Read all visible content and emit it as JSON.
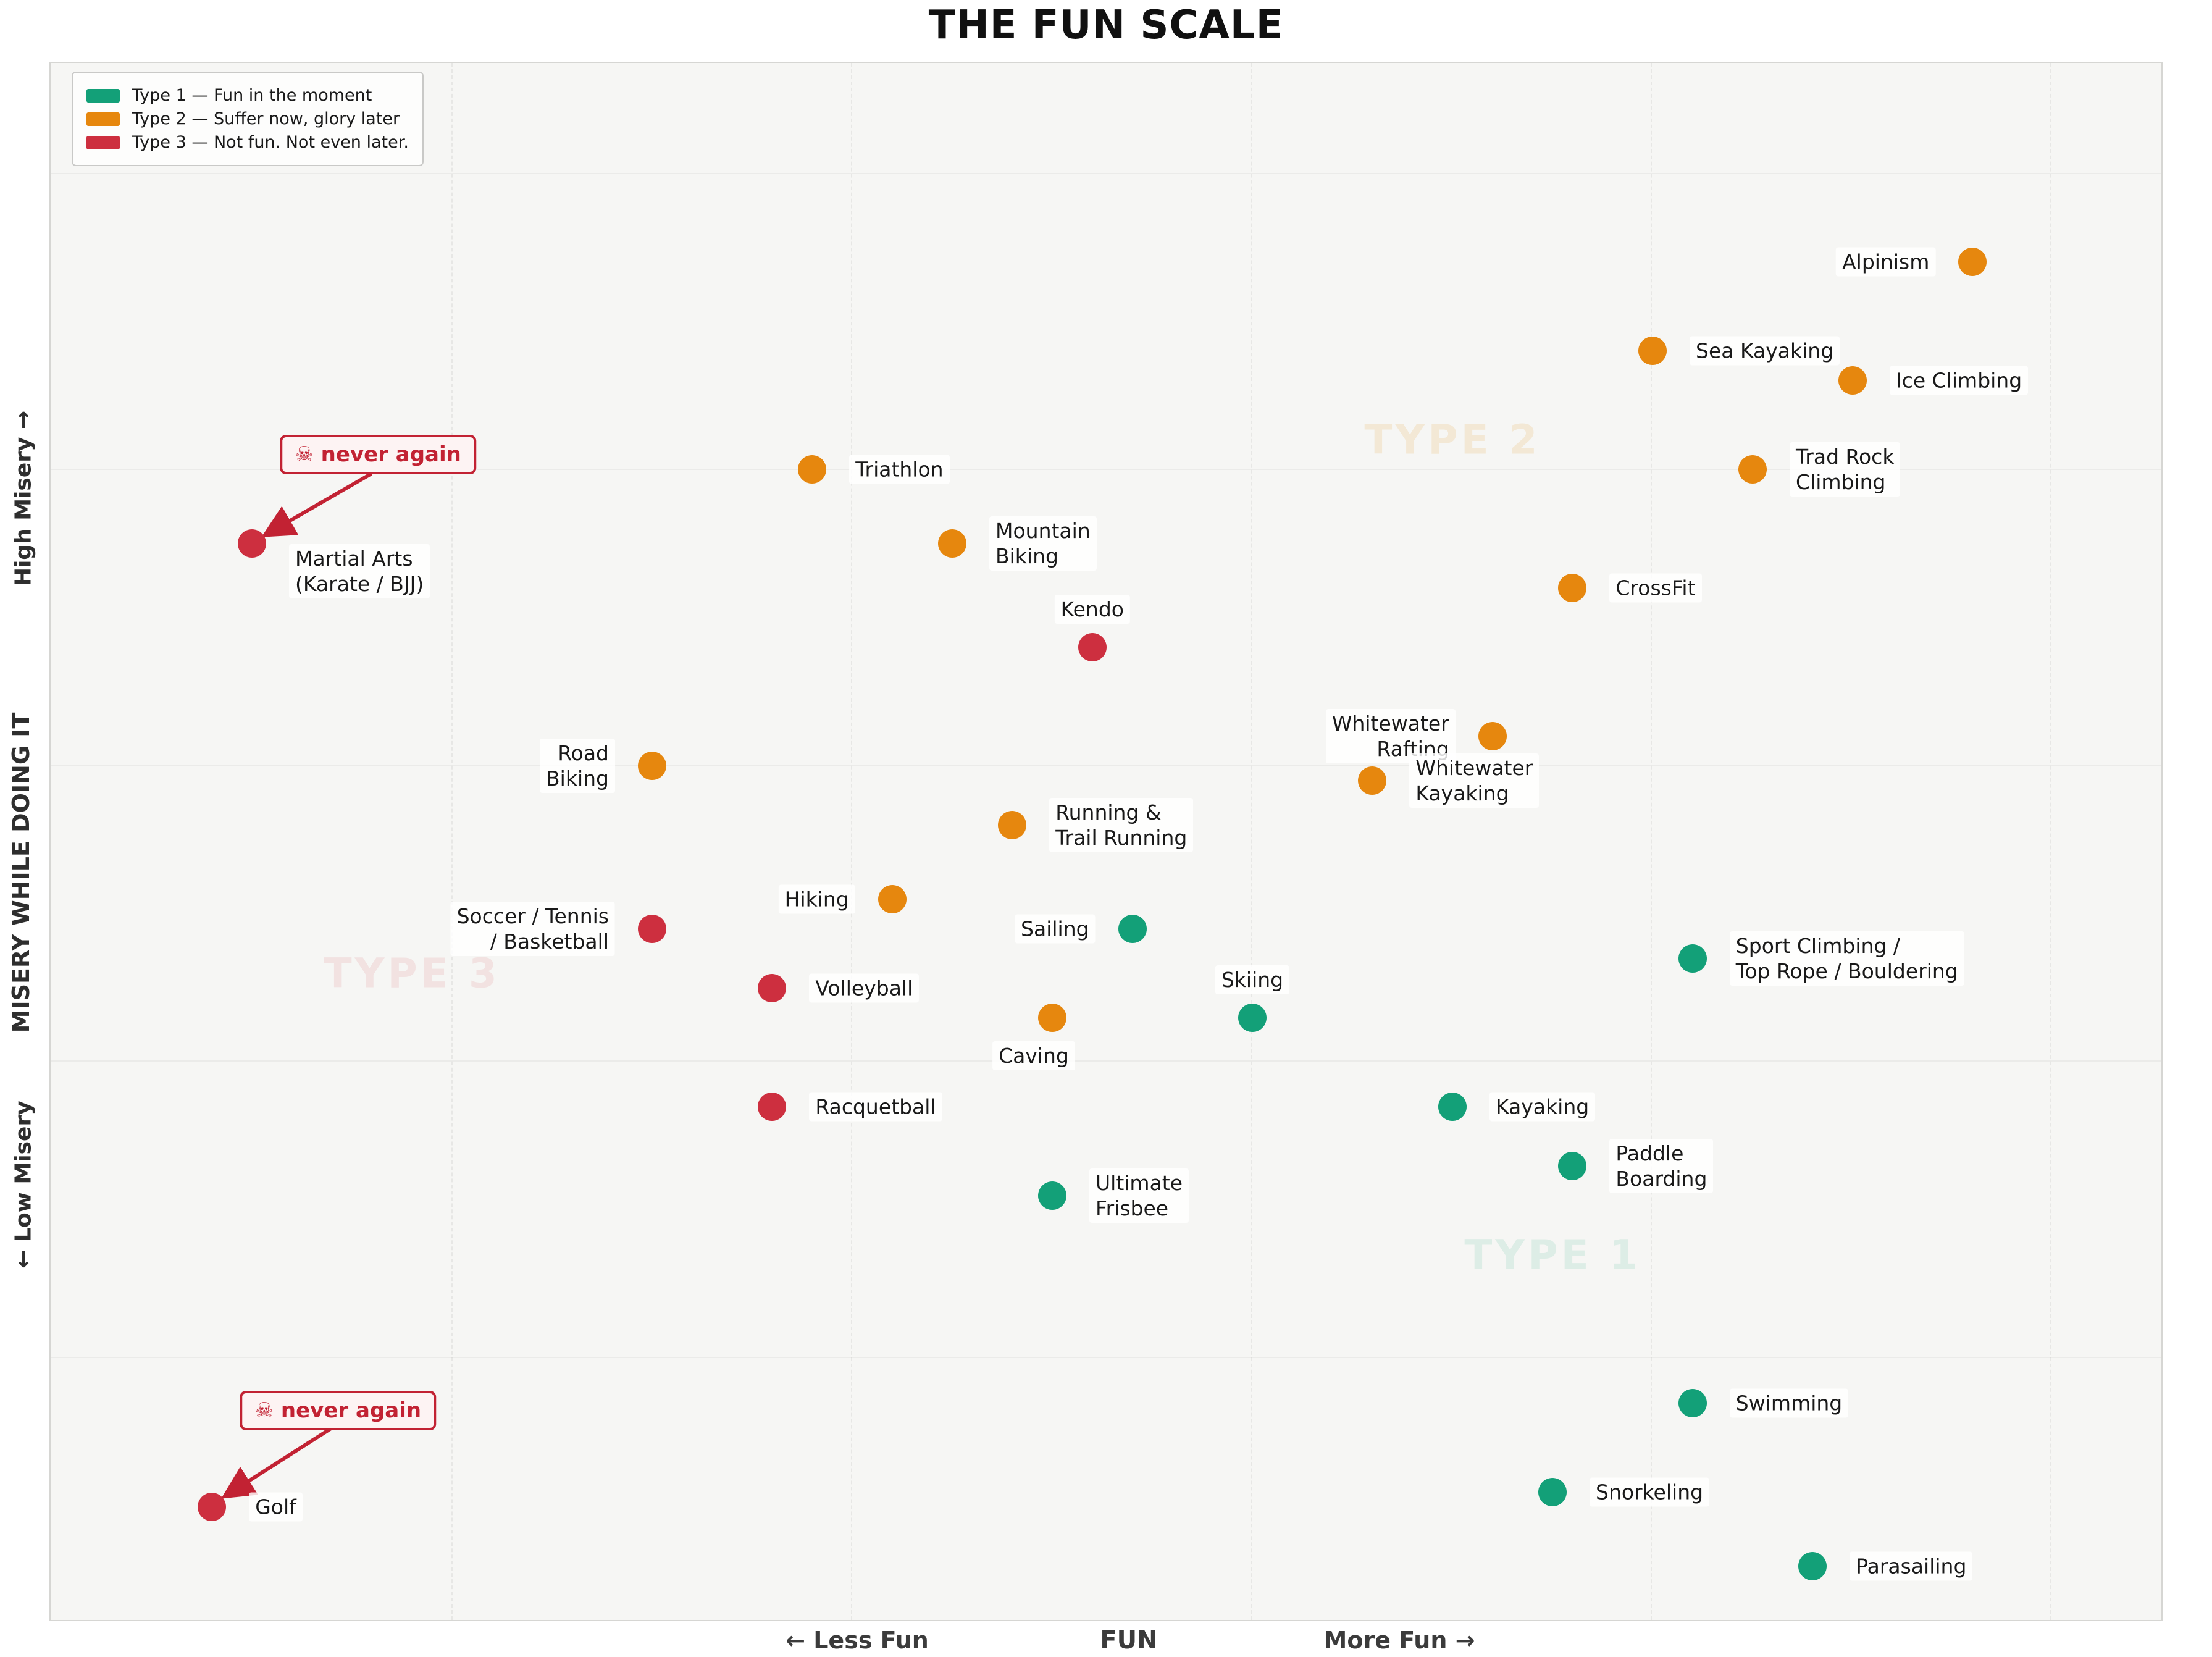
{
  "title": "THE FUN SCALE",
  "colors": {
    "type1": "#13a078",
    "type2": "#e6870e",
    "type3": "#cd2f3f",
    "annotation_red": "#c22233",
    "annotation_bg": "#fdf3f3",
    "plot_bg": "#f6f6f4",
    "axis_text": "#3b3b3b"
  },
  "legend": {
    "items": [
      {
        "type_id": 1,
        "label": "Type 1 — Fun in the moment"
      },
      {
        "type_id": 2,
        "label": "Type 2 — Suffer now, glory later"
      },
      {
        "type_id": 3,
        "label": "Type 3 — Not fun. Not even later."
      }
    ]
  },
  "y_axis": {
    "top": "High Misery →",
    "title": "MISERY WHILE DOING IT",
    "bottom": "← Low Misery"
  },
  "x_axis": {
    "left": "← Less Fun",
    "title": "FUN",
    "right": "More Fun →"
  },
  "watermarks": [
    {
      "text": "TYPE 2",
      "fun": 7.0,
      "misery": 8.2,
      "color": "rgba(230,150,30,0.14)"
    },
    {
      "text": "TYPE 3",
      "fun": 1.8,
      "misery": 4.6,
      "color": "rgba(205,47,63,0.10)"
    },
    {
      "text": "TYPE 1",
      "fun": 7.5,
      "misery": 2.7,
      "color": "rgba(19,160,120,0.11)"
    }
  ],
  "annotations": [
    {
      "text": "☠ never again",
      "target": "Martial Arts (Karate / BJJ)",
      "fun": 1.63,
      "misery": 8.1
    },
    {
      "text": "☠ never again",
      "target": "Golf",
      "fun": 1.43,
      "misery": 1.65
    }
  ],
  "chart_data": {
    "type": "scatter",
    "title": "THE FUN SCALE",
    "xlabel": "FUN",
    "ylabel": "MISERY WHILE DOING IT",
    "xlim": [
      0,
      10.55
    ],
    "ylim": [
      0.2,
      10.75
    ],
    "xticks": [
      2,
      4,
      6,
      8,
      10
    ],
    "yticks": [
      2,
      4,
      6,
      8,
      10
    ],
    "grid": true,
    "legend_position": "upper left",
    "series": [
      {
        "name": "Type 1 — Fun in the moment",
        "type_id": 1,
        "points": [
          {
            "label": "Sailing",
            "fun": 5.4,
            "misery": 4.9,
            "label_side": "left"
          },
          {
            "label": "Sport Climbing /\nTop Rope / Bouldering",
            "fun": 8.2,
            "misery": 4.7,
            "label_side": "right"
          },
          {
            "label": "Skiing",
            "fun": 6.0,
            "misery": 4.3,
            "label_side": "above"
          },
          {
            "label": "Kayaking",
            "fun": 7.0,
            "misery": 3.7,
            "label_side": "right"
          },
          {
            "label": "Paddle\nBoarding",
            "fun": 7.6,
            "misery": 3.3,
            "label_side": "right"
          },
          {
            "label": "Ultimate\nFrisbee",
            "fun": 5.0,
            "misery": 3.1,
            "label_side": "right"
          },
          {
            "label": "Swimming",
            "fun": 8.2,
            "misery": 1.7,
            "label_side": "right"
          },
          {
            "label": "Snorkeling",
            "fun": 7.5,
            "misery": 1.1,
            "label_side": "right"
          },
          {
            "label": "Parasailing",
            "fun": 8.8,
            "misery": 0.6,
            "label_side": "right"
          }
        ]
      },
      {
        "name": "Type 2 — Suffer now, glory later",
        "type_id": 2,
        "points": [
          {
            "label": "Alpinism",
            "fun": 9.6,
            "misery": 9.4,
            "label_side": "left"
          },
          {
            "label": "Sea Kayaking",
            "fun": 8.0,
            "misery": 8.8,
            "label_side": "right"
          },
          {
            "label": "Ice Climbing",
            "fun": 9.0,
            "misery": 8.6,
            "label_side": "right"
          },
          {
            "label": "Triathlon",
            "fun": 3.8,
            "misery": 8.0,
            "label_side": "right"
          },
          {
            "label": "Trad Rock\nClimbing",
            "fun": 8.5,
            "misery": 8.0,
            "label_side": "right"
          },
          {
            "label": "Mountain\nBiking",
            "fun": 4.5,
            "misery": 7.5,
            "label_side": "right"
          },
          {
            "label": "CrossFit",
            "fun": 7.6,
            "misery": 7.2,
            "label_side": "right"
          },
          {
            "label": "Whitewater\nRafting",
            "fun": 7.2,
            "misery": 6.2,
            "label_side": "left"
          },
          {
            "label": "Road\nBiking",
            "fun": 3.0,
            "misery": 6.0,
            "label_side": "left"
          },
          {
            "label": "Whitewater\nKayaking",
            "fun": 6.6,
            "misery": 5.9,
            "label_side": "right"
          },
          {
            "label": "Running &\nTrail Running",
            "fun": 4.8,
            "misery": 5.6,
            "label_side": "right"
          },
          {
            "label": "Hiking",
            "fun": 4.2,
            "misery": 5.1,
            "label_side": "left"
          },
          {
            "label": "Caving",
            "fun": 5.0,
            "misery": 4.3,
            "label_side": "below",
            "dx": -30
          }
        ]
      },
      {
        "name": "Type 3 — Not fun. Not even later.",
        "type_id": 3,
        "points": [
          {
            "label": "Martial Arts\n(Karate / BJJ)",
            "fun": 1.0,
            "misery": 7.5,
            "label_side": "right",
            "dy": 45
          },
          {
            "label": "Kendo",
            "fun": 5.2,
            "misery": 6.8,
            "label_side": "above"
          },
          {
            "label": "Soccer / Tennis\n/ Basketball",
            "fun": 3.0,
            "misery": 4.9,
            "label_side": "left"
          },
          {
            "label": "Volleyball",
            "fun": 3.6,
            "misery": 4.5,
            "label_side": "right"
          },
          {
            "label": "Racquetball",
            "fun": 3.6,
            "misery": 3.7,
            "label_side": "right"
          },
          {
            "label": "Golf",
            "fun": 0.8,
            "misery": 1.0,
            "label_side": "right"
          }
        ]
      }
    ]
  }
}
